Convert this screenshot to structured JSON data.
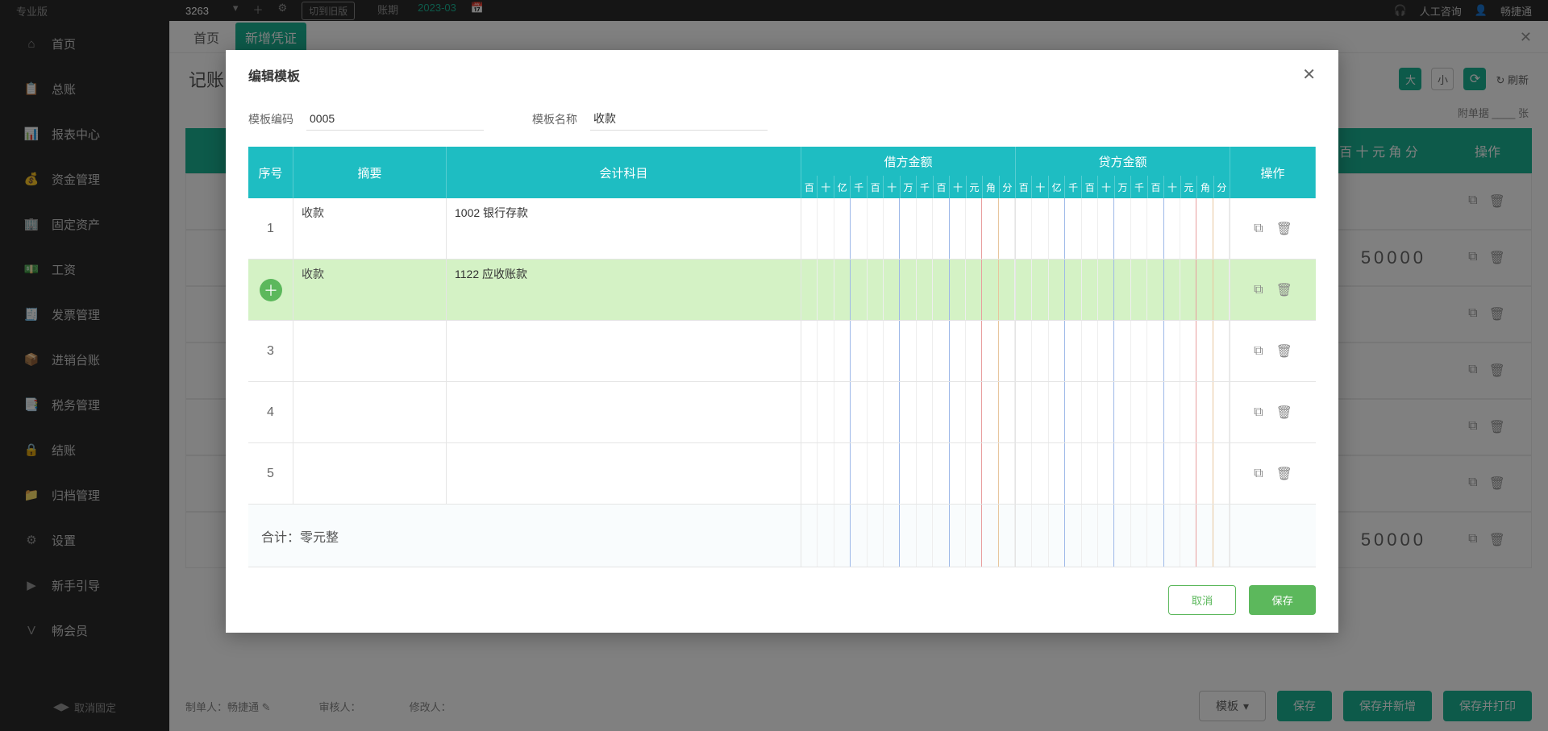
{
  "topbar": {
    "org_code": "3263",
    "switch_label": "切到旧版",
    "period_label": "账期",
    "period_value": "2023-03",
    "support_label": "人工咨询",
    "user_name": "畅捷通"
  },
  "sidebar": {
    "items": [
      {
        "label": "首页",
        "name": "home"
      },
      {
        "label": "总账",
        "name": "ledger"
      },
      {
        "label": "报表中心",
        "name": "reports"
      },
      {
        "label": "资金管理",
        "name": "funds"
      },
      {
        "label": "固定资产",
        "name": "assets"
      },
      {
        "label": "工资",
        "name": "salary"
      },
      {
        "label": "发票管理",
        "name": "invoice"
      },
      {
        "label": "进销台账",
        "name": "inventory"
      },
      {
        "label": "税务管理",
        "name": "tax"
      },
      {
        "label": "结账",
        "name": "closing"
      },
      {
        "label": "归档管理",
        "name": "archive"
      },
      {
        "label": "设置",
        "name": "settings"
      },
      {
        "label": "新手引导",
        "name": "guide"
      },
      {
        "label": "畅会员",
        "name": "member"
      }
    ],
    "pin_label": "取消固定"
  },
  "tabs": {
    "home": "首页",
    "active": "新增凭证"
  },
  "page": {
    "title": "记账",
    "size_big": "大",
    "size_small": "小",
    "refresh": "刷新",
    "attach_label": "附单据",
    "attach_unit": "张"
  },
  "bg_table": {
    "ops_header": "操作",
    "digit_tail": "百 十 元 角 分",
    "amounts": [
      "",
      "50000",
      "",
      "",
      "",
      "",
      "50000"
    ]
  },
  "footer": {
    "creator_label": "制单人：",
    "creator": "畅捷通",
    "auditor_label": "审核人：",
    "modifier_label": "修改人：",
    "template_btn": "模板",
    "save_btn": "保存",
    "save_new_btn": "保存并新增",
    "save_print_btn": "保存并打印"
  },
  "modal": {
    "title": "编辑模板",
    "code_label": "模板编码",
    "code_value": "0005",
    "name_label": "模板名称",
    "name_value": "收款",
    "headers": {
      "seq": "序号",
      "summary": "摘要",
      "subject": "会计科目",
      "debit": "借方金额",
      "credit": "贷方金额",
      "ops": "操作"
    },
    "digits": [
      "百",
      "十",
      "亿",
      "千",
      "百",
      "十",
      "万",
      "千",
      "百",
      "十",
      "元",
      "角",
      "分"
    ],
    "rows": [
      {
        "seq": "1",
        "summary": "收款",
        "subject": "1002 银行存款",
        "highlight": false
      },
      {
        "seq": "",
        "summary": "收款",
        "subject": "1122 应收账款",
        "highlight": true,
        "add": true
      },
      {
        "seq": "3",
        "summary": "",
        "subject": "",
        "highlight": false
      },
      {
        "seq": "4",
        "summary": "",
        "subject": "",
        "highlight": false
      },
      {
        "seq": "5",
        "summary": "",
        "subject": "",
        "highlight": false
      }
    ],
    "total_label": "合计：零元整",
    "cancel": "取消",
    "save": "保存"
  }
}
